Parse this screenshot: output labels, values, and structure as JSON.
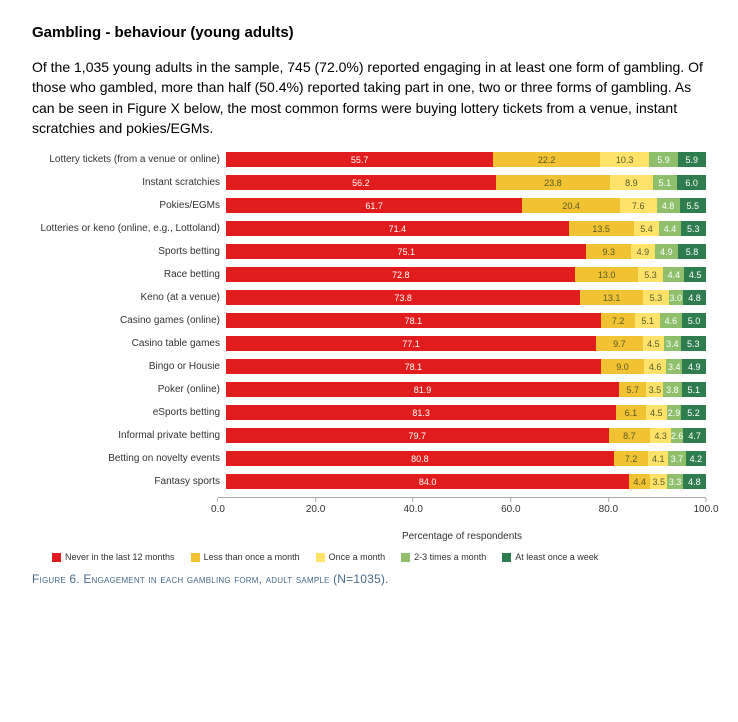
{
  "title": "Gambling - behaviour (young adults)",
  "intro": "Of the 1,035 young adults in the sample, 745 (72.0%) reported engaging in at least one form of gambling. Of those who gambled, more than half (50.4%) reported taking part in one, two or three forms of gambling. As can be seen in Figure X below, the most common forms were buying lottery tickets from a venue, instant scratchies and pokies/EGMs.",
  "chart": {
    "type": "horizontal_stacked_bar",
    "xmin": 0.0,
    "xmax": 100.0,
    "xtick_step": 20.0,
    "ticks": [
      "0.0",
      "20.0",
      "40.0",
      "60.0",
      "80.0",
      "100.0"
    ],
    "xlabel": "Percentage of respondents",
    "series": [
      {
        "label": "Never in the last 12 months",
        "color": "#e01c1c",
        "text_light": false
      },
      {
        "label": "Less than once a month",
        "color": "#f1c232",
        "text_light": true
      },
      {
        "label": "Once a month",
        "color": "#ffe26a",
        "text_light": true
      },
      {
        "label": "2-3 times a month",
        "color": "#8fbf6b",
        "text_light": false
      },
      {
        "label": "At least once a week",
        "color": "#2e7d4f",
        "text_light": false
      }
    ],
    "categories": [
      {
        "label": "Lottery tickets (from a venue or online)",
        "values": [
          55.7,
          22.2,
          10.3,
          5.9,
          5.9
        ]
      },
      {
        "label": "Instant scratchies",
        "values": [
          56.2,
          23.8,
          8.9,
          5.1,
          6.0
        ]
      },
      {
        "label": "Pokies/EGMs",
        "values": [
          61.7,
          20.4,
          7.6,
          4.8,
          5.5
        ]
      },
      {
        "label": "Lotteries or keno (online, e.g., Lottoland)",
        "values": [
          71.4,
          13.5,
          5.4,
          4.4,
          5.3
        ]
      },
      {
        "label": "Sports betting",
        "values": [
          75.1,
          9.3,
          4.9,
          4.9,
          5.8
        ]
      },
      {
        "label": "Race betting",
        "values": [
          72.8,
          13.0,
          5.3,
          4.4,
          4.5
        ]
      },
      {
        "label": "Keno (at a venue)",
        "values": [
          73.8,
          13.1,
          5.3,
          3.0,
          4.8
        ]
      },
      {
        "label": "Casino games (online)",
        "values": [
          78.1,
          7.2,
          5.1,
          4.6,
          5.0
        ]
      },
      {
        "label": "Casino table games",
        "values": [
          77.1,
          9.7,
          4.5,
          3.4,
          5.3
        ]
      },
      {
        "label": "Bingo or Housie",
        "values": [
          78.1,
          9.0,
          4.6,
          3.4,
          4.9
        ]
      },
      {
        "label": "Poker (online)",
        "values": [
          81.9,
          5.7,
          3.5,
          3.8,
          5.1
        ]
      },
      {
        "label": "eSports betting",
        "values": [
          81.3,
          6.1,
          4.5,
          2.9,
          5.2
        ]
      },
      {
        "label": "Informal private betting",
        "values": [
          79.7,
          8.7,
          4.3,
          2.6,
          4.7
        ]
      },
      {
        "label": "Betting on novelty events",
        "values": [
          80.8,
          7.2,
          4.1,
          3.7,
          4.2
        ]
      },
      {
        "label": "Fantasy sports",
        "values": [
          84.0,
          4.4,
          3.5,
          3.3,
          4.8
        ]
      }
    ],
    "label_fontsize": 10,
    "value_fontsize": 9,
    "background_color": "#ffffff"
  },
  "caption": "Figure 6. Engagement in each gambling form, adult sample (N=1035).",
  "caption_color": "#4a6b8a"
}
